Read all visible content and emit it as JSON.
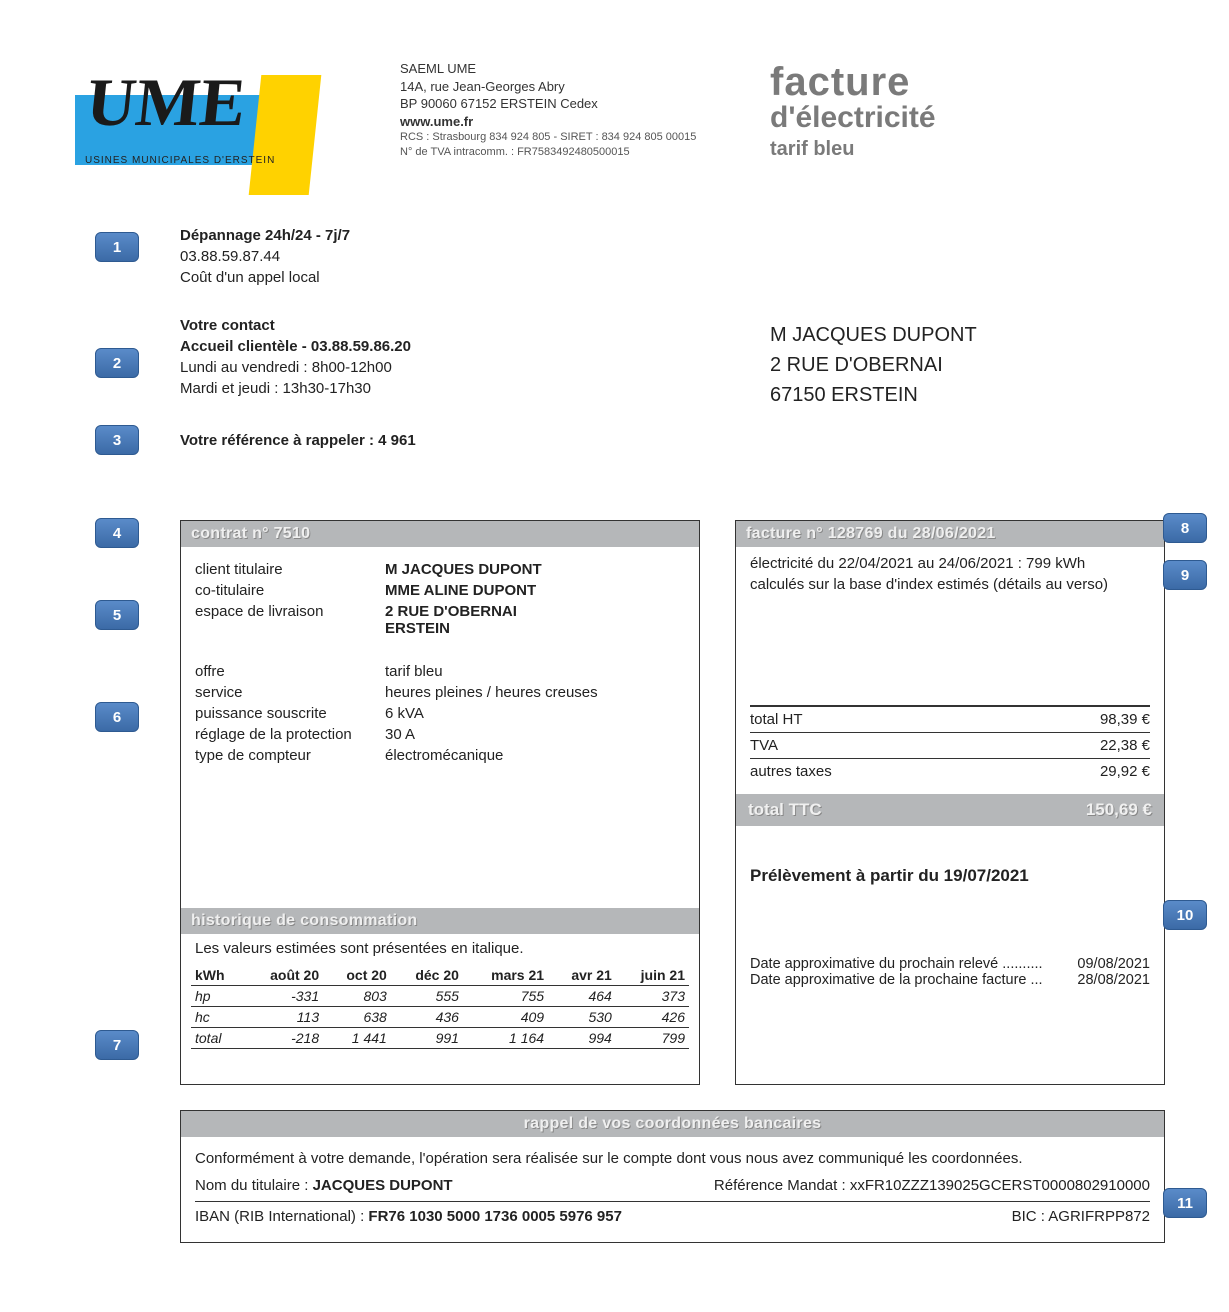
{
  "company": {
    "name": "SAEML UME",
    "addr1": "14A, rue Jean-Georges Abry",
    "addr2": "BP 90060 67152 ERSTEIN Cedex",
    "website": "www.ume.fr",
    "rcs": "RCS : Strasbourg 834 924 805 - SIRET : 834 924 805 00015",
    "tva": "N° de TVA intracomm. : FR7583492480500015",
    "logo_sub": "USINES MUNICIPALES D'ERSTEIN"
  },
  "title": {
    "line1": "facture",
    "line2": "d'électricité",
    "line3": "tarif bleu"
  },
  "depannage": {
    "title": "Dépannage 24h/24 - 7j/7",
    "phone": "03.88.59.87.44",
    "note": "Coût d'un appel local"
  },
  "contact": {
    "title": "Votre contact",
    "line": "Accueil clientèle - 03.88.59.86.20",
    "hours1": "Lundi au vendredi : 8h00-12h00",
    "hours2": "Mardi et jeudi : 13h30-17h30"
  },
  "reference": {
    "label": "Votre référence à rappeler :",
    "value": "4 961"
  },
  "customer": {
    "name": "M JACQUES DUPONT",
    "addr1": "2 RUE D'OBERNAI",
    "addr2": "67150 ERSTEIN"
  },
  "contract": {
    "header": "contrat n° 7510",
    "client_label": "client titulaire",
    "client": "M JACQUES DUPONT",
    "co_label": "co-titulaire",
    "co": "MME ALINE DUPONT",
    "deliv_label": "espace de livraison",
    "deliv1": "2 RUE D'OBERNAI",
    "deliv2": "ERSTEIN",
    "offer_label": "offre",
    "offer": "tarif bleu",
    "service_label": "service",
    "service": "heures pleines / heures creuses",
    "power_label": "puissance souscrite",
    "power": "6 kVA",
    "prot_label": "réglage de la protection",
    "prot": "30 A",
    "meter_label": "type de compteur",
    "meter": "électromécanique"
  },
  "history": {
    "header": "historique de consommation",
    "note": "Les valeurs estimées sont présentées en italique.",
    "col_unit": "kWh",
    "columns": [
      "août 20",
      "oct 20",
      "déc 20",
      "mars 21",
      "avr 21",
      "juin 21"
    ],
    "rows": [
      {
        "label": "hp",
        "cells": [
          "-331",
          "803",
          "555",
          "755",
          "464",
          "373"
        ],
        "italic": true
      },
      {
        "label": "hc",
        "cells": [
          "113",
          "638",
          "436",
          "409",
          "530",
          "426"
        ],
        "italic": true
      },
      {
        "label": "total",
        "cells": [
          "-218",
          "1 441",
          "991",
          "1 164",
          "994",
          "799"
        ],
        "italic": true
      }
    ]
  },
  "invoice": {
    "header": "facture n° 128769 du 28/06/2021",
    "summary1": "électricité du 22/04/2021 au 24/06/2021 : 799 kWh",
    "summary2": "calculés sur la base d'index estimés (détails au verso)",
    "totals": [
      {
        "label": "total HT",
        "value": "98,39 €"
      },
      {
        "label": "TVA",
        "value": "22,38 €"
      },
      {
        "label": "autres taxes",
        "value": "29,92 €"
      }
    ],
    "ttc_label": "total TTC",
    "ttc_value": "150,69 €",
    "prelev": "Prélèvement à partir du 19/07/2021",
    "date1_label": "Date approximative du prochain relevé ..........",
    "date1_value": "09/08/2021",
    "date2_label": "Date approximative de la prochaine facture ...",
    "date2_value": "28/08/2021"
  },
  "bank": {
    "header": "rappel de vos coordonnées bancaires",
    "intro": "Conformément à votre demande, l'opération sera réalisée sur le compte dont vous nous avez communiqué les coordonnées.",
    "holder_label": "Nom du titulaire :",
    "holder": "JACQUES DUPONT",
    "mandate_label": "Référence Mandat :",
    "mandate": "xxFR10ZZZ139025GCERST0000802910000",
    "iban_label": "IBAN (RIB International) :",
    "iban": "FR76 1030 5000 1736 0005 5976 957",
    "bic_label": "BIC :",
    "bic": "AGRIFRPP872"
  },
  "tags": [
    "1",
    "2",
    "3",
    "4",
    "5",
    "6",
    "7",
    "8",
    "9",
    "10",
    "11"
  ]
}
